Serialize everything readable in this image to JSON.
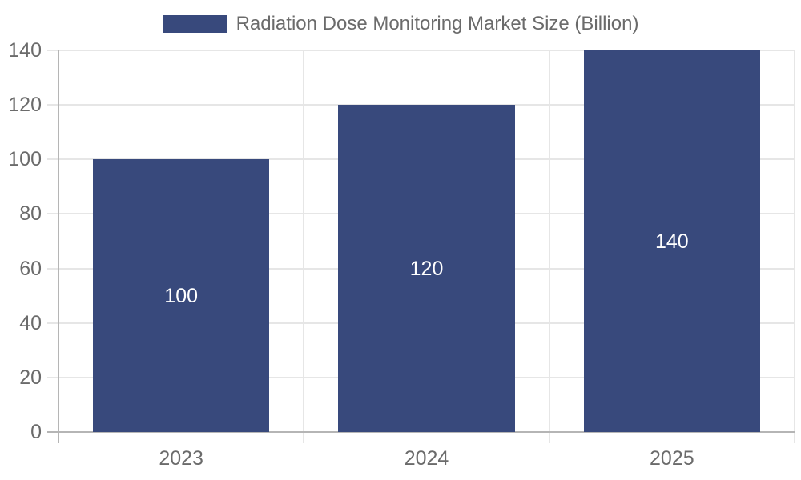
{
  "chart_data": {
    "type": "bar",
    "title": "Radiation Dose Monitoring Market Size (Billion)",
    "legend": {
      "position": "top",
      "label": "Radiation Dose Monitoring Market Size (Billion)"
    },
    "categories": [
      "2023",
      "2024",
      "2025"
    ],
    "values": [
      100,
      120,
      140
    ],
    "value_labels": [
      "100",
      "120",
      "140"
    ],
    "xlabel": "",
    "ylabel": "",
    "ylim": [
      0,
      140
    ],
    "ytick_step": 20,
    "ytick_labels": [
      "0",
      "20",
      "40",
      "60",
      "80",
      "100",
      "120",
      "140"
    ],
    "grid": true,
    "colors": {
      "bar": "#38497C",
      "value_label": "#FFFFFF",
      "axis_text": "#6B6B6B",
      "legend_text": "#6B6B6B",
      "grid_line": "#E6E6E6",
      "zero_line": "#B5B5B5",
      "background": "#FFFFFF"
    }
  }
}
